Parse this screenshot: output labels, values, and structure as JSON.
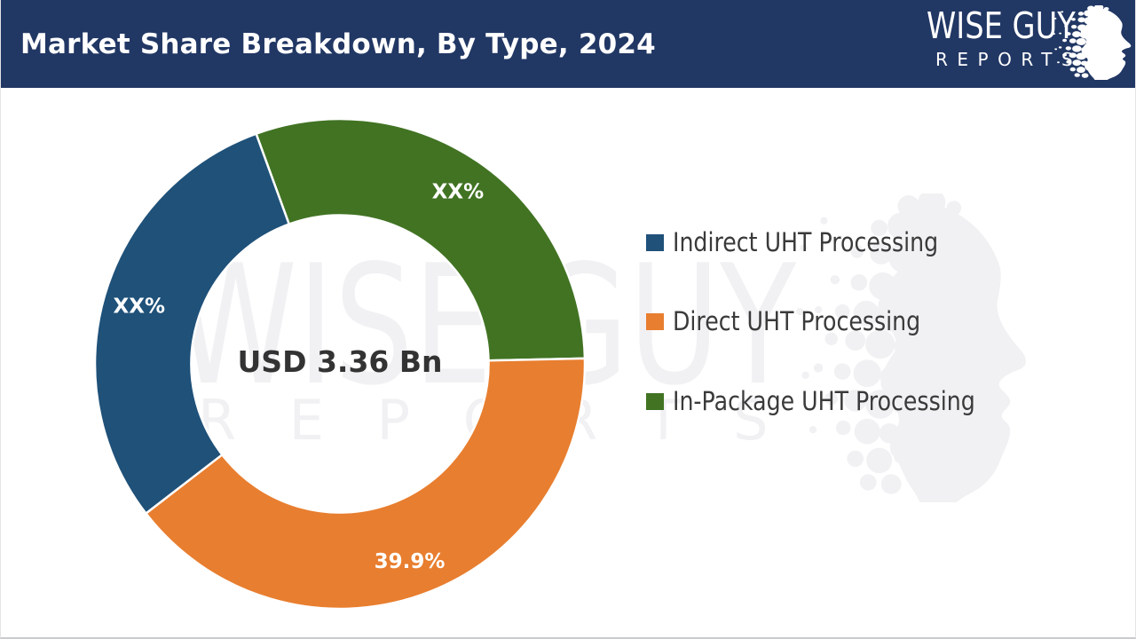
{
  "header": {
    "title": "Market Share Breakdown, By Type, 2024",
    "background_color": "#213764"
  },
  "logo": {
    "name": "WISE GUY",
    "subtitle": "REPORTS",
    "face_icon": "dotted-head-profile"
  },
  "watermark": {
    "name": "WISE GUY",
    "subtitle": "REPORTS",
    "color": "#f1f1f4"
  },
  "chart_data": {
    "type": "pie",
    "subtype": "donut",
    "title": "Market Share Breakdown, By Type, 2024",
    "center_label": "USD 3.36 Bn",
    "unit": "%",
    "start_angle_deg": -20,
    "direction": "clockwise",
    "draw_order": "reversed",
    "inner_radius_ratio": 0.607,
    "legend_position": "right",
    "series": [
      {
        "name": "Indirect UHT Processing",
        "value": 29.9,
        "label": "XX%",
        "color": "#1f5179"
      },
      {
        "name": "Direct UHT Processing",
        "value": 39.9,
        "label": "39.9%",
        "color": "#e87e2f"
      },
      {
        "name": "In-Package UHT Processing",
        "value": 30.2,
        "label": "XX%",
        "color": "#417323"
      }
    ]
  }
}
